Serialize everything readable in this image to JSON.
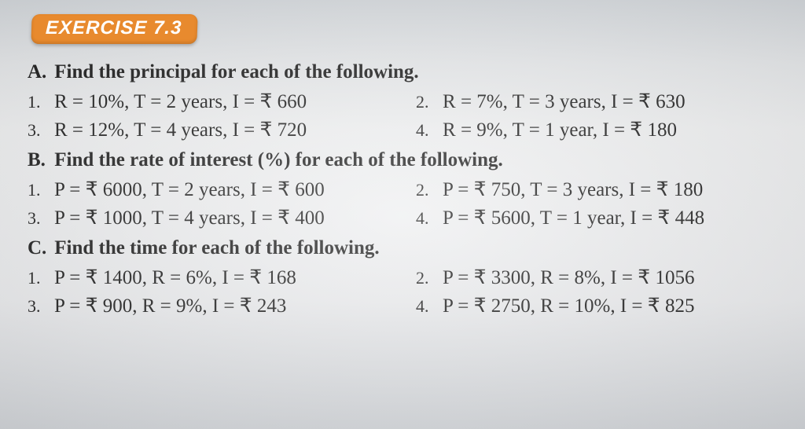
{
  "badge": "EXERCISE 7.3",
  "sections": {
    "A": {
      "letter": "A.",
      "title": "Find the principal for each of the following.",
      "items": [
        {
          "num": "1.",
          "text": "R = 10%, T = 2 years, I = ₹ 660"
        },
        {
          "num": "2.",
          "text": "R = 7%, T = 3 years, I = ₹ 630"
        },
        {
          "num": "3.",
          "text": "R = 12%, T = 4 years, I = ₹ 720"
        },
        {
          "num": "4.",
          "text": "R = 9%, T = 1 year, I = ₹ 180"
        }
      ]
    },
    "B": {
      "letter": "B.",
      "title": "Find the rate of interest (%) for each of the following.",
      "items": [
        {
          "num": "1.",
          "text": "P = ₹ 6000, T = 2 years, I = ₹ 600"
        },
        {
          "num": "2.",
          "text": "P = ₹ 750, T = 3 years, I = ₹ 180"
        },
        {
          "num": "3.",
          "text": "P = ₹ 1000, T = 4 years, I = ₹ 400"
        },
        {
          "num": "4.",
          "text": "P = ₹ 5600, T = 1 year, I = ₹ 448"
        }
      ]
    },
    "C": {
      "letter": "C.",
      "title": "Find the time for each of the following.",
      "items": [
        {
          "num": "1.",
          "text": "P = ₹ 1400, R = 6%, I = ₹ 168"
        },
        {
          "num": "2.",
          "text": "P = ₹ 3300, R = 8%, I = ₹ 1056"
        },
        {
          "num": "3.",
          "text": "P = ₹ 900, R = 9%, I = ₹ 243"
        },
        {
          "num": "4.",
          "text": "P = ₹ 2750, R = 10%, I = ₹ 825"
        }
      ]
    }
  }
}
